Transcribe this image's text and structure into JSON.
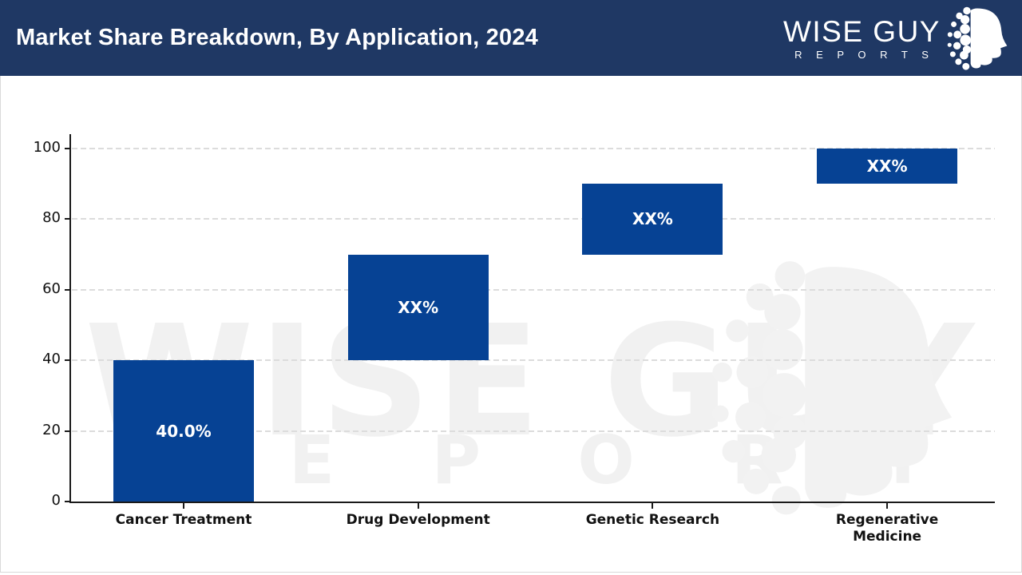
{
  "header": {
    "title": "Market Share Breakdown, By Application, 2024",
    "logo": {
      "name": "WISE GUY",
      "subtitle": "R E P O R T S"
    }
  },
  "watermark": {
    "line1": "WISE GUY",
    "line2": "R E P O R T S"
  },
  "chart_data": {
    "type": "bar",
    "subtype": "floating-waterfall",
    "title": "Market Share Breakdown, By Application, 2024",
    "categories": [
      "Cancer Treatment",
      "Drug Development",
      "Genetic Research",
      "Regenerative Medicine"
    ],
    "bars": [
      {
        "category": "Cancer Treatment",
        "start": 0,
        "end": 40,
        "label": "40.0%"
      },
      {
        "category": "Drug Development",
        "start": 40,
        "end": 70,
        "label": "XX%"
      },
      {
        "category": "Genetic Research",
        "start": 70,
        "end": 90,
        "label": "XX%"
      },
      {
        "category": "Regenerative Medicine",
        "start": 90,
        "end": 100,
        "label": "XX%"
      }
    ],
    "yticks": [
      0,
      20,
      40,
      60,
      80,
      100
    ],
    "ylim": [
      0,
      104
    ],
    "xlabel": "",
    "ylabel": "",
    "grid": "horizontal-dashed",
    "legend": "none",
    "colors": {
      "bar": "#064294",
      "header_bg": "#1f3864",
      "grid": "#dcdcdc",
      "axis": "#1a1a1a",
      "bar_label": "#ffffff",
      "watermark": "#f1f1f1"
    }
  }
}
